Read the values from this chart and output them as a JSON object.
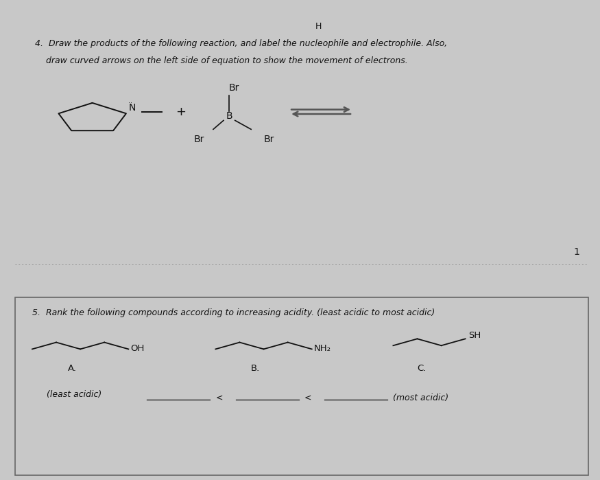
{
  "page_bg": "#c8c8c8",
  "section1_bg": "#e0e0e0",
  "section2_bg": "#eeeeee",
  "gap_bg": "#c8c8c8",
  "text_color": "#111111",
  "line_color": "#111111",
  "q4_line1": "4.  Draw the products of the following reaction, and label the nucleophile and electrophile. Also,",
  "q4_line2": "    draw curved arrows on the left side of equation to show the movement of electrons.",
  "q5_text": "5.  Rank the following compounds according to increasing acidity. (least acidic to most acidic)",
  "label_a": "A.",
  "label_b": "B.",
  "label_c": "C.",
  "label_oh": "OH",
  "label_nh2": "NH₂",
  "label_sh": "SH",
  "footer_least": "(least acidic)",
  "footer_most": "(most acidic)",
  "number1": "1",
  "h_label": "H"
}
